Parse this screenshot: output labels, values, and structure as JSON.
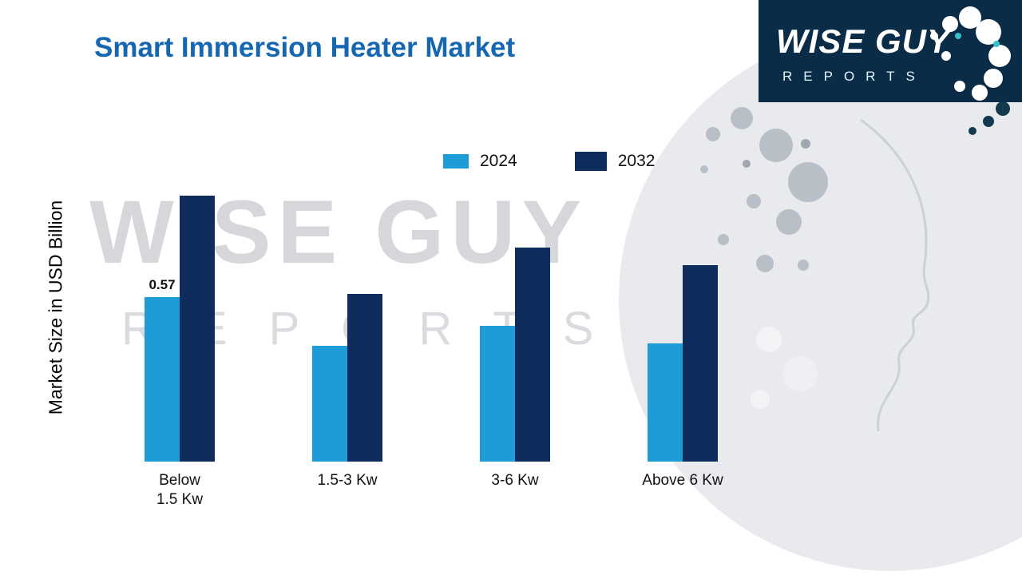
{
  "logo": {
    "line1": "WISE GUY",
    "line2": "REPORTS"
  },
  "watermark": {
    "line1": "WISE GUY",
    "line2": "REPORTS"
  },
  "colors": {
    "title_blue": "#1667b1",
    "series_2024": "#1e9cd7",
    "series_2032": "#0e2c5c",
    "logo_background": "#0a2c47",
    "background_circle_gray": "#e8eaee"
  },
  "chart_data": {
    "type": "bar",
    "title": "Smart Immersion Heater Market",
    "xlabel": "",
    "ylabel": "Market Size in USD Billion",
    "categories": [
      "Below 1.5 Kw",
      "1.5-3 Kw",
      "3-6 Kw",
      "Above 6 Kw"
    ],
    "series": [
      {
        "name": "2024",
        "color": "#1e9cd7",
        "values": [
          0.57,
          0.4,
          0.47,
          0.41
        ],
        "labels": [
          "0.57",
          "",
          "",
          ""
        ]
      },
      {
        "name": "2032",
        "color": "#0e2c5c",
        "values": [
          0.92,
          0.58,
          0.74,
          0.68
        ],
        "labels": [
          "",
          "",
          "",
          ""
        ]
      }
    ],
    "ylim": [
      0,
      1.0
    ],
    "grid": false,
    "legend_position": "top-center"
  }
}
